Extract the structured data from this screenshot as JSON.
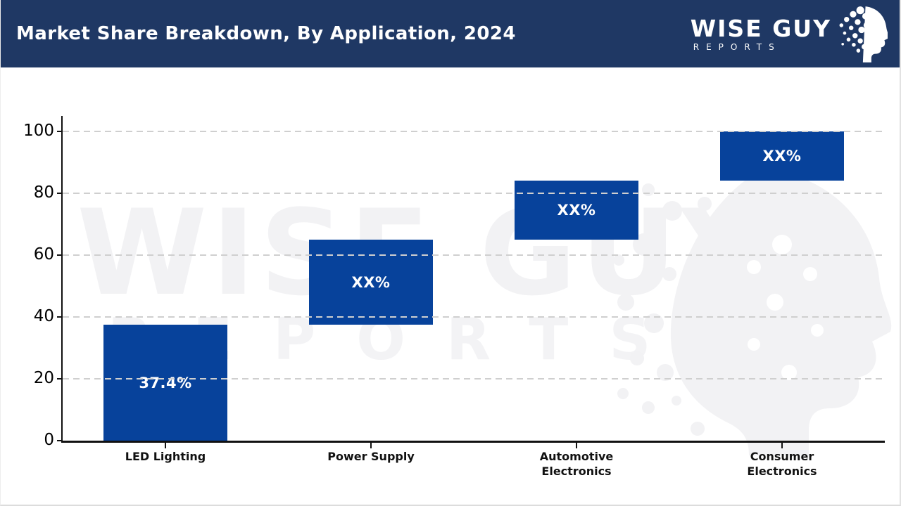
{
  "header": {
    "title": "Market Share Breakdown, By Application, 2024",
    "logo": {
      "line1": "WISE GUY",
      "line2": "REPORTS"
    }
  },
  "watermark": {
    "line1": "WISE GUY",
    "line2": "REPORTS"
  },
  "colors": {
    "header_background": "#1F3864",
    "bar_blue": "#07429B",
    "bar_label": "#FFFFFF",
    "gridline": "#CFCFCF",
    "watermark_gray": "#F2F2F4"
  },
  "chart_data": {
    "type": "waterfall-bar",
    "title": "Market Share Breakdown, By Application, 2024",
    "ylim": [
      0,
      100
    ],
    "yticks": [
      0,
      20,
      40,
      60,
      80,
      100
    ],
    "grid": {
      "horizontal": true,
      "style": "dashed",
      "above_bars": true
    },
    "legend": "none",
    "bar_color": "#07429B",
    "bar_label_color": "#FFFFFF",
    "categories": [
      {
        "label": "LED Lighting",
        "lines": [
          "LED Lighting"
        ]
      },
      {
        "label": "Power Supply",
        "lines": [
          "Power Supply"
        ]
      },
      {
        "label": "Automotive Electronics",
        "lines": [
          "Automotive",
          "Electronics"
        ]
      },
      {
        "label": "Consumer Electronics",
        "lines": [
          "Consumer",
          "Electronics"
        ]
      }
    ],
    "bars": [
      {
        "category": "LED Lighting",
        "start": 0,
        "end": 37.4,
        "label": "37.4%"
      },
      {
        "category": "Power Supply",
        "start": 37.4,
        "end": 65,
        "label": "XX%"
      },
      {
        "category": "Automotive Electronics",
        "start": 65,
        "end": 84,
        "label": "XX%"
      },
      {
        "category": "Consumer Electronics",
        "start": 84,
        "end": 100,
        "label": "XX%"
      }
    ]
  }
}
